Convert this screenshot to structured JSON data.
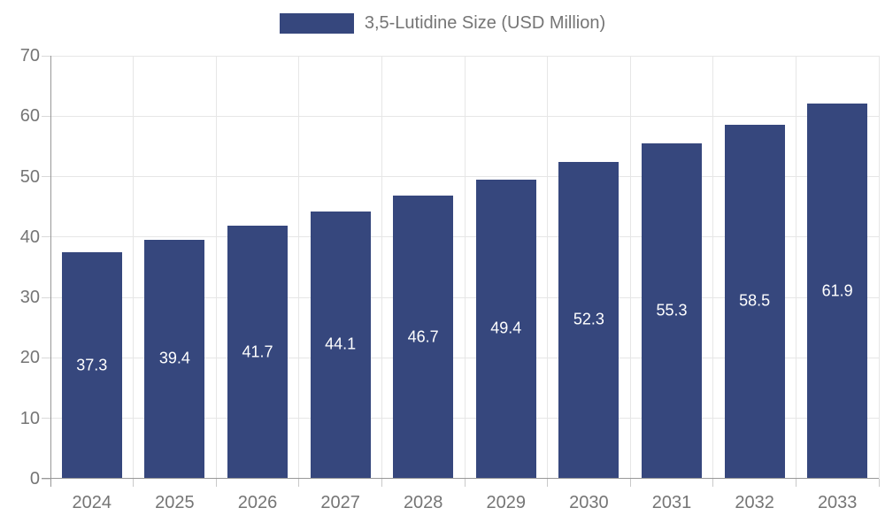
{
  "chart_data": {
    "type": "bar",
    "title": "",
    "legend": "3,5-Lutidine Size (USD Million)",
    "legend_position": "top",
    "categories": [
      "2024",
      "2025",
      "2026",
      "2027",
      "2028",
      "2029",
      "2030",
      "2031",
      "2032",
      "2033"
    ],
    "series": [
      {
        "name": "3,5-Lutidine Size (USD Million)",
        "values": [
          37.3,
          39.4,
          41.7,
          44.1,
          46.7,
          49.4,
          52.3,
          55.3,
          58.5,
          61.9
        ],
        "value_labels": [
          "37.3",
          "39.4",
          "41.7",
          "44.1",
          "46.7",
          "49.4",
          "52.3",
          "55.3",
          "58.5",
          "61.9"
        ]
      }
    ],
    "xlabel": "",
    "ylabel": "",
    "ylim": [
      0,
      70
    ],
    "yticks": [
      0,
      10,
      20,
      30,
      40,
      50,
      60,
      70
    ],
    "ytick_labels": [
      "0",
      "10",
      "20",
      "30",
      "40",
      "50",
      "60",
      "70"
    ],
    "grid": true,
    "colors": {
      "bar": "#36477d",
      "grid": "#e6e6e6",
      "axis": "#989898",
      "tick_label": "#757575",
      "value_label": "#ffffff",
      "background": "#ffffff"
    }
  }
}
